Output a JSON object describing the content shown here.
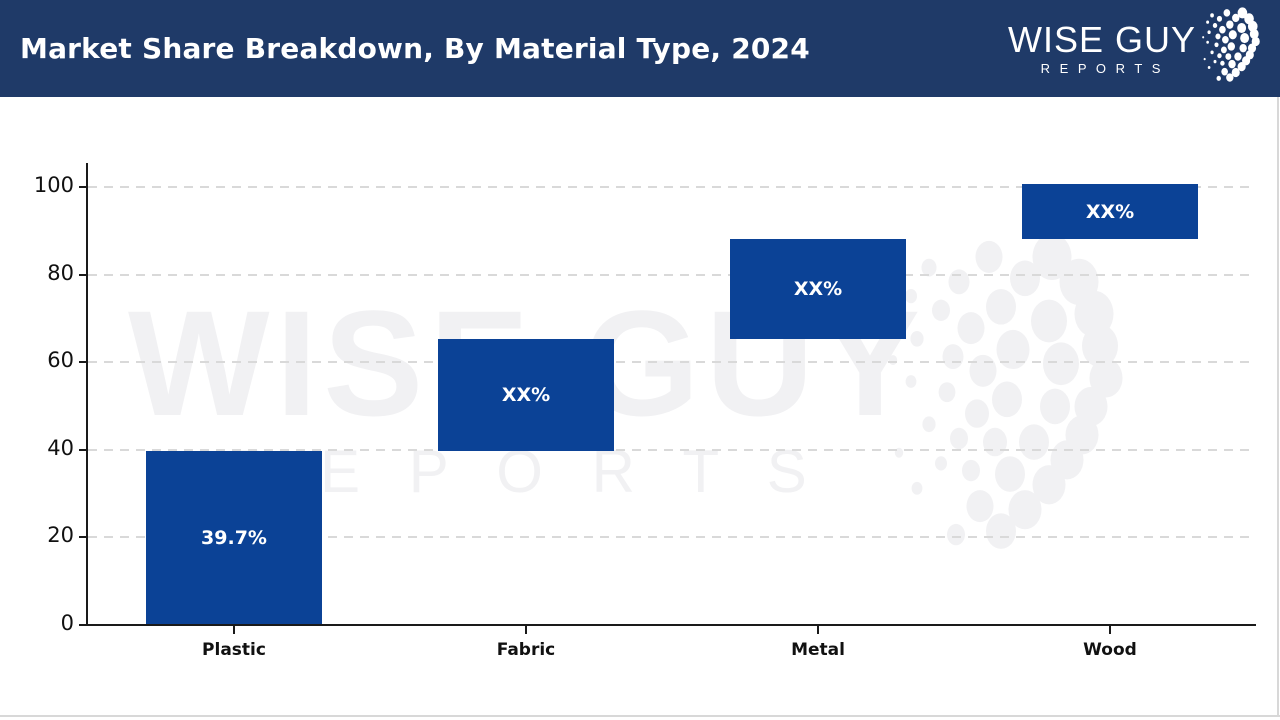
{
  "header": {
    "title": "Market Share Breakdown, By Material Type, 2024",
    "logo": {
      "wordmark": "WISE GUY",
      "subtext": "R E P O R T S"
    }
  },
  "watermark": {
    "wordmark": "WISE GUY",
    "subtext": "R E P O R T S"
  },
  "colors": {
    "header_bg": "#1F3A68",
    "bar": "#0B4296",
    "bar_label": "#FFFFFF",
    "grid": "#D9D9D9",
    "axis": "#1A1A1A",
    "watermark": "#F1F1F3"
  },
  "chart_data": {
    "type": "bar",
    "subtype": "waterfall-floating-bars",
    "title": "Market Share Breakdown, By Material Type, 2024",
    "categories": [
      "Plastic",
      "Fabric",
      "Metal",
      "Wood"
    ],
    "segments": [
      {
        "category": "Plastic",
        "base": 0,
        "top": 39.7,
        "label": "39.7%"
      },
      {
        "category": "Fabric",
        "base": 39.7,
        "top": 65.3,
        "label": "XX%"
      },
      {
        "category": "Metal",
        "base": 65.3,
        "top": 88,
        "label": "XX%"
      },
      {
        "category": "Wood",
        "base": 88,
        "top": 100.7,
        "label": "XX%"
      }
    ],
    "yticks": [
      0,
      20,
      40,
      60,
      80,
      100
    ],
    "ylim": [
      0,
      105
    ],
    "grid": "horizontal-dashed",
    "legend": "none",
    "xlabel": "",
    "ylabel": ""
  }
}
